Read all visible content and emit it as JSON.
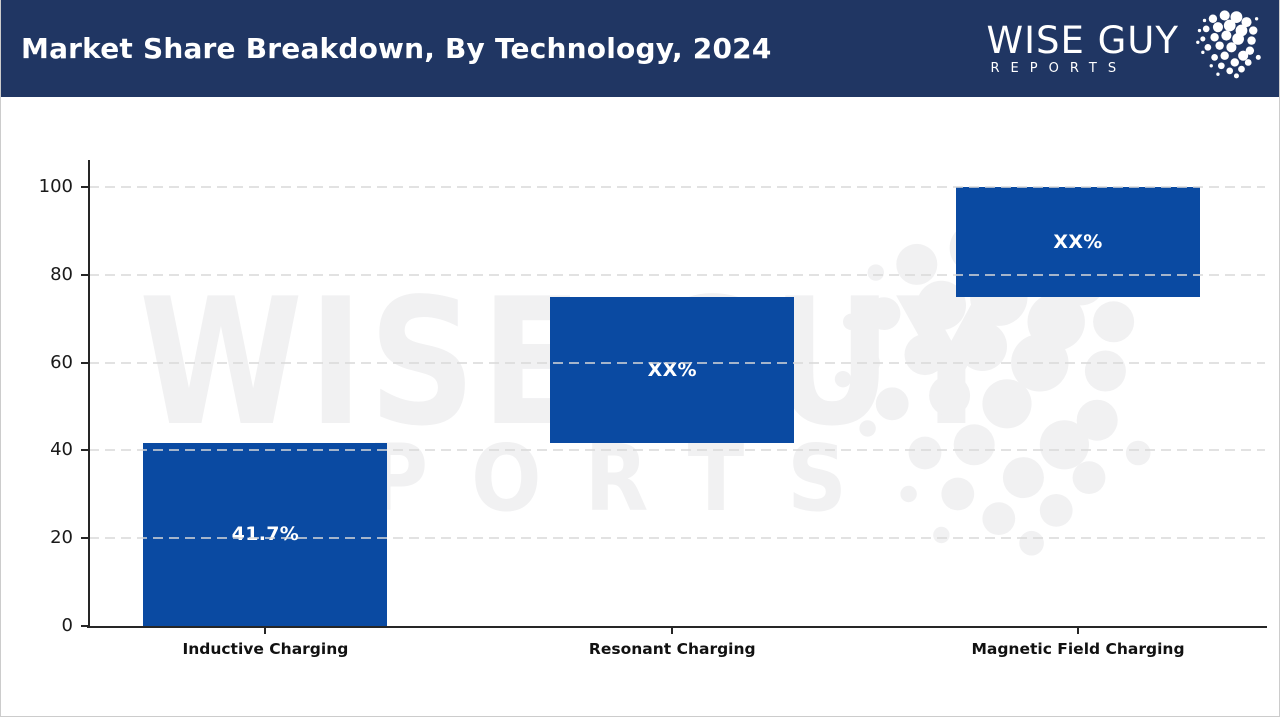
{
  "header": {
    "title": "Market Share Breakdown, By Technology, 2024",
    "logo": {
      "line1": "WISE GUY",
      "line2": "REPORTS"
    }
  },
  "watermark": {
    "line1": "WISE GUY",
    "line2": "REPORTS"
  },
  "colors": {
    "header_bg": "#203663",
    "bar": "#0A4AA2",
    "grid": "#d9d9d9",
    "axis": "#262626",
    "watermark": "#f1f1f2",
    "bar_label_text": "#ffffff"
  },
  "chart_data": {
    "type": "bar",
    "subtype": "waterfall-stacked-range",
    "title": "Market Share Breakdown, By Technology, 2024",
    "categories": [
      "Inductive Charging",
      "Resonant Charging",
      "Magnetic Field Charging"
    ],
    "bars": [
      {
        "category": "Inductive Charging",
        "start": 0,
        "end": 41.7,
        "label": "41.7%"
      },
      {
        "category": "Resonant Charging",
        "start": 41.7,
        "end": 75,
        "label": "XX%"
      },
      {
        "category": "Magnetic Field Charging",
        "start": 75,
        "end": 100,
        "label": "XX%"
      }
    ],
    "xlabel": "",
    "ylabel": "",
    "ylim": [
      0,
      100
    ],
    "yticks": [
      0,
      20,
      40,
      60,
      80,
      100
    ],
    "grid": "horizontal-dashed, drawn over bars",
    "legend": "none",
    "bar_color": "#0A4AA2",
    "value_labels": "inside bars, white bold"
  }
}
